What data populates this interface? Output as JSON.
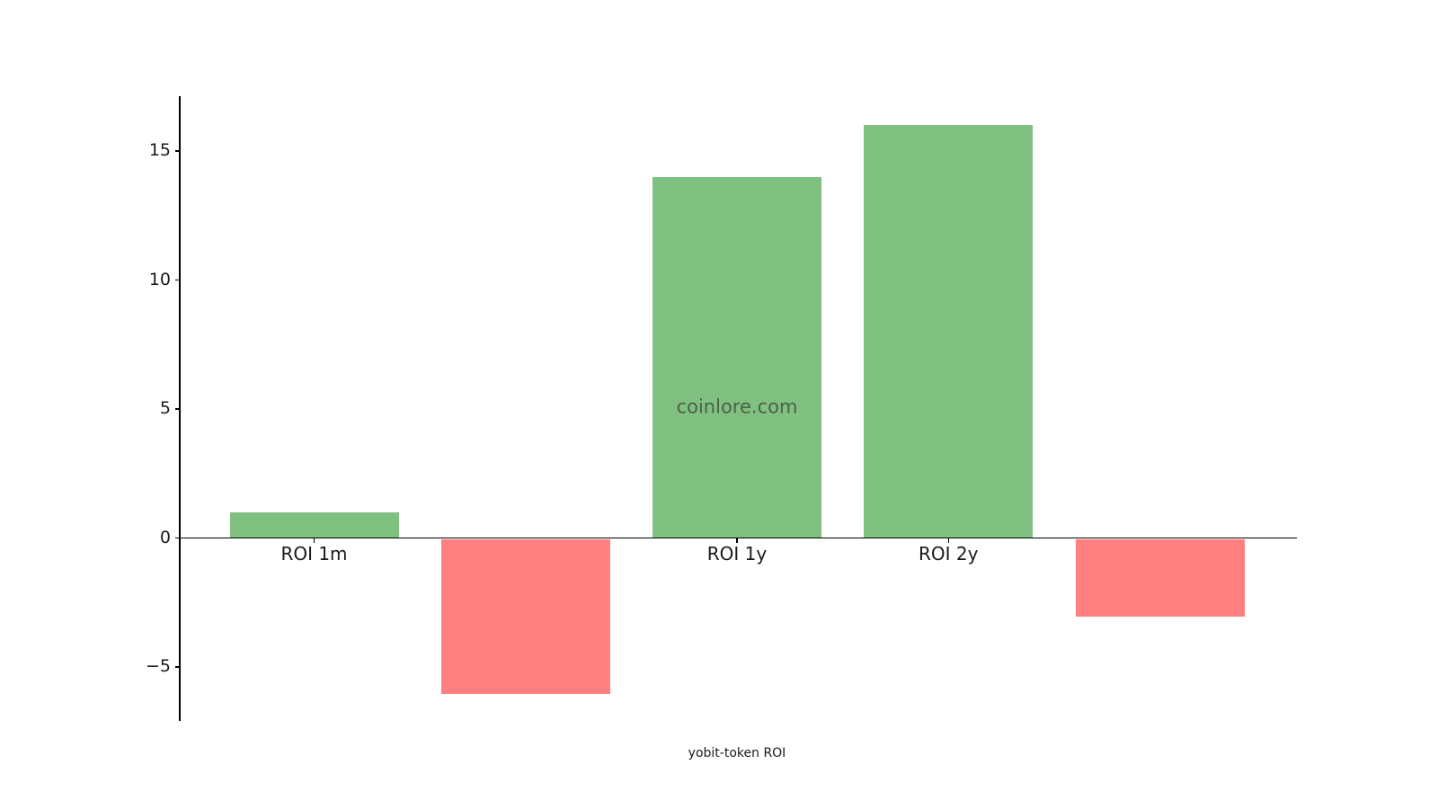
{
  "chart_data": {
    "type": "bar",
    "title": "yobit-token ROI",
    "watermark": "coinlore.com",
    "categories": [
      "ROI 1m",
      "",
      "ROI 1y",
      "ROI 2y",
      ""
    ],
    "values": [
      1,
      -6,
      14,
      16,
      -3
    ],
    "bar_colors": [
      "#80c080",
      "#ff8080",
      "#80c080",
      "#80c080",
      "#ff8080"
    ],
    "positive_color": "#80c080",
    "negative_color": "#ff8080",
    "yticks": [
      15,
      10,
      5,
      0,
      -5
    ],
    "ytick_labels": [
      "15",
      "10",
      "5",
      "0",
      "−5"
    ],
    "ylim": [
      -7.08,
      17.15
    ],
    "xlabel": "yobit-token ROI",
    "ylabel": "",
    "grid": false,
    "legend": "none",
    "axis_color": "#000000",
    "tick_text_color": "#1a1a1a"
  }
}
